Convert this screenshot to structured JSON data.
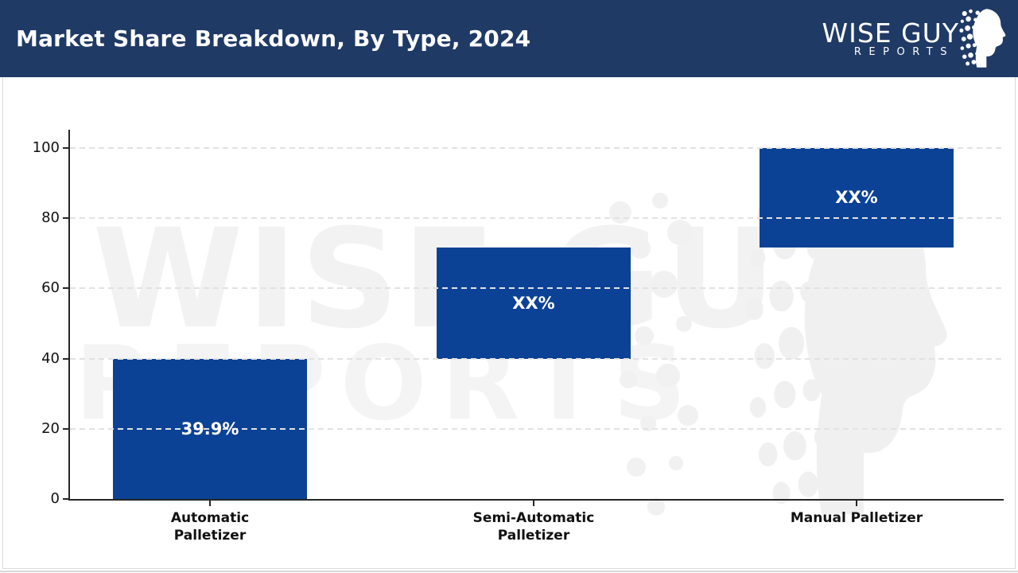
{
  "header": {
    "title": "Market Share Breakdown, By Type, 2024",
    "bg_color": "#203a66",
    "logo": {
      "line1": "WISE GUY",
      "line2": "REPORTS"
    }
  },
  "watermark": {
    "line1": "WISE GU",
    "line2": "REPORTS"
  },
  "chart_data": {
    "type": "bar",
    "subtype": "waterfall",
    "title": "Market Share Breakdown, By Type, 2024",
    "categories": [
      [
        "Automatic",
        "Palletizer"
      ],
      [
        "Semi-Automatic",
        "Palletizer"
      ],
      [
        "Manual Palletizer"
      ]
    ],
    "series": [
      {
        "name": "Automatic Palletizer",
        "start": 0,
        "end": 39.9,
        "label": "39.9%"
      },
      {
        "name": "Semi-Automatic Palletizer",
        "start": 39.9,
        "end": 71.7,
        "label": "XX%"
      },
      {
        "name": "Manual Palletizer",
        "start": 71.7,
        "end": 100,
        "label": "XX%"
      }
    ],
    "ylim": [
      0,
      100
    ],
    "yticks": [
      0,
      20,
      40,
      60,
      80,
      100
    ],
    "grid": true,
    "legend": false,
    "bar_color": "#0c4295",
    "value_label_color": "#ffffff",
    "axis_color": "#262626",
    "grid_color": "#e2e2e2"
  }
}
